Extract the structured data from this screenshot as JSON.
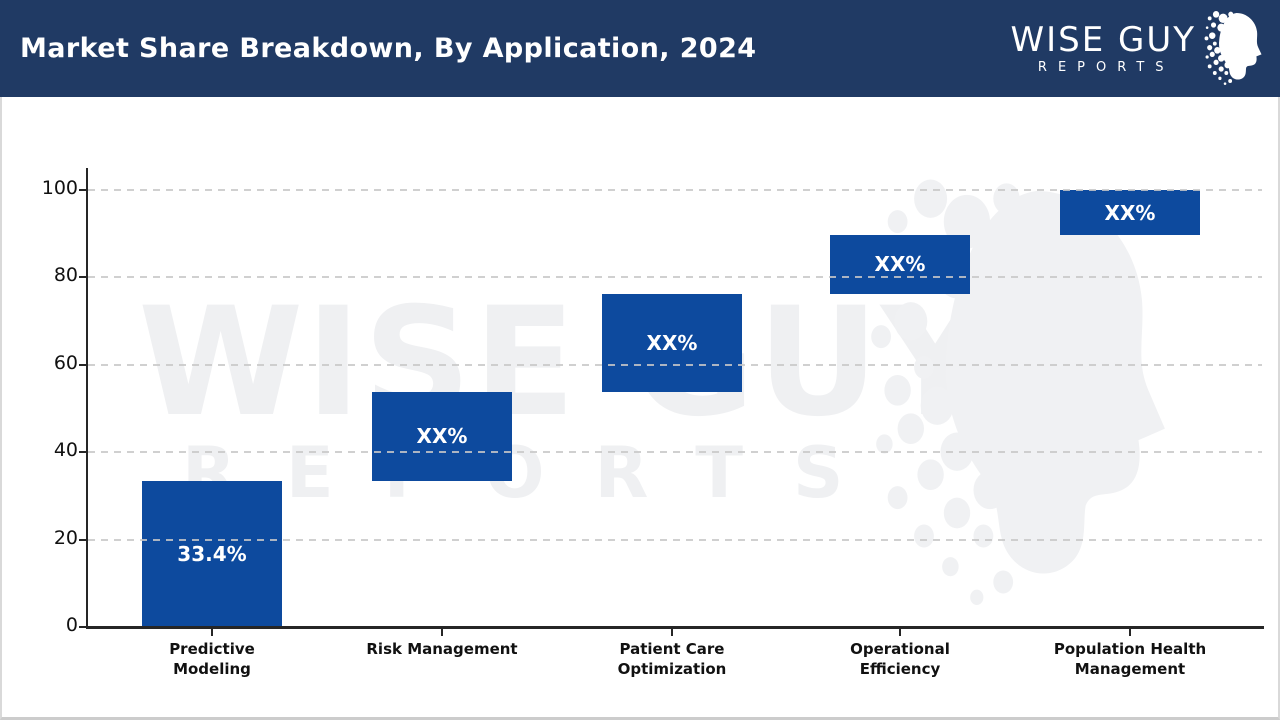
{
  "header": {
    "title": "Market Share Breakdown, By Application, 2024",
    "bg_color": "#203a64",
    "logo": {
      "line1": "WISE GUY",
      "line2": "REPORTS"
    }
  },
  "watermark": {
    "line1": "WISE GUY",
    "line2": "REPORTS"
  },
  "icons": {
    "logo_head": "dotted-head-profile-icon",
    "watermark_head": "dotted-head-profile-icon"
  },
  "chart_data": {
    "type": "bar",
    "variant": "waterfall",
    "title": "Market Share Breakdown, By Application, 2024",
    "categories": [
      "Predictive\nModeling",
      "Risk Management",
      "Patient Care\nOptimization",
      "Operational\nEfficiency",
      "Population Health\nManagement"
    ],
    "segments": [
      {
        "start": 0,
        "end": 33.4,
        "label": "33.4%"
      },
      {
        "start": 33.4,
        "end": 53.8,
        "label": "XX%"
      },
      {
        "start": 53.8,
        "end": 76.3,
        "label": "XX%"
      },
      {
        "start": 76.3,
        "end": 89.6,
        "label": "XX%"
      },
      {
        "start": 89.6,
        "end": 100,
        "label": "XX%"
      }
    ],
    "xlabel": "",
    "ylabel": "",
    "ylim": [
      0,
      100
    ],
    "yticks": [
      0,
      20,
      40,
      60,
      80,
      100
    ],
    "grid": {
      "horizontal": true,
      "style": "dashed",
      "over_bars": true
    },
    "legend": "none",
    "colors": {
      "bar": "#0d4a9e",
      "bar_label": "#ffffff",
      "grid": "#c8c8c8",
      "axis": "#262626",
      "header_bg": "#203a64",
      "watermark": "#eff0f2"
    }
  }
}
